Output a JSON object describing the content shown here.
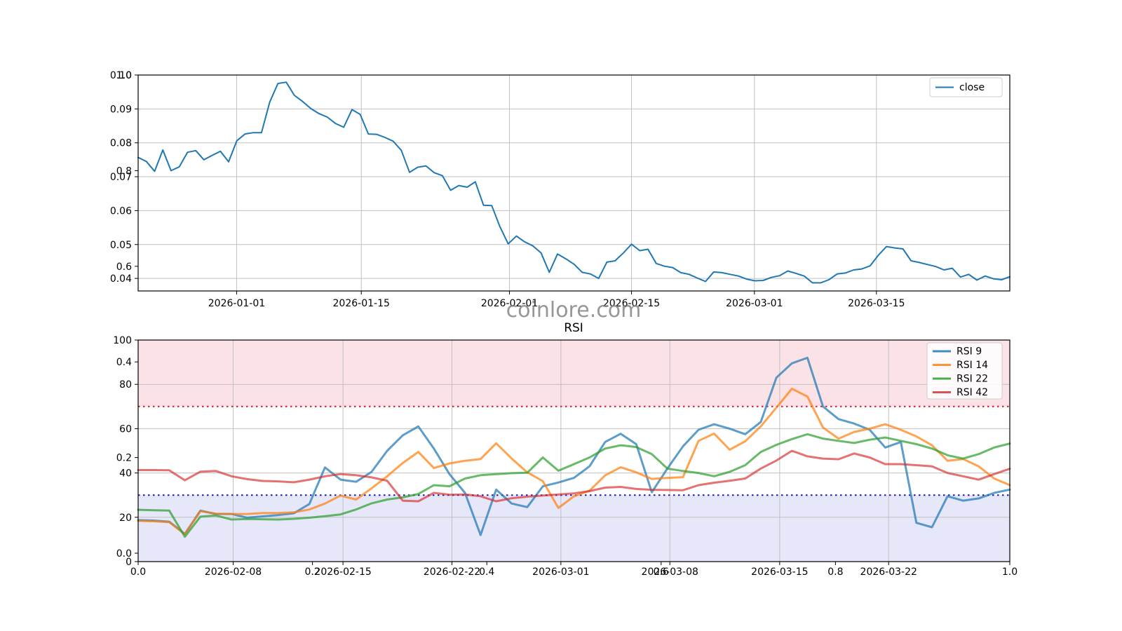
{
  "figure": {
    "watermark": "coinlore.com",
    "rsi_title": "RSI"
  },
  "overlay_axis": {
    "x_tick_labels": [
      "0.0",
      "0.2",
      "0.4",
      "0.6",
      "0.8",
      "1.0"
    ],
    "y_tick_labels": [
      "0.0",
      "0.2",
      "0.4",
      "0.6",
      "0.8",
      "1.0"
    ]
  },
  "chart_data": [
    {
      "type": "line",
      "title": "",
      "xlabel": "",
      "ylabel": "",
      "grid": true,
      "legend_position": "upper right",
      "legend_labels": [
        "close"
      ],
      "ylim": [
        0.0363,
        0.1
      ],
      "y_tick_values": [
        0.04,
        0.05,
        0.06,
        0.07,
        0.08,
        0.09,
        0.1
      ],
      "y_tick_labels": [
        "0.04",
        "0.05",
        "0.06",
        "0.07",
        "0.08",
        "0.09",
        "0.10"
      ],
      "x_tick_labels": [
        "2026-01-01",
        "2026-01-15",
        "2026-02-01",
        "2026-02-15",
        "2026-03-01",
        "2026-03-15"
      ],
      "x_tick_pos": [
        0.113,
        0.256,
        0.426,
        0.566,
        0.707,
        0.847
      ],
      "series": [
        {
          "name": "close",
          "color": "#1f77b4",
          "width": 2,
          "values": [
            0.0757,
            0.0745,
            0.0716,
            0.0779,
            0.0718,
            0.0729,
            0.0772,
            0.0777,
            0.075,
            0.0763,
            0.0775,
            0.0744,
            0.0806,
            0.0826,
            0.083,
            0.083,
            0.092,
            0.0975,
            0.0979,
            0.094,
            0.0922,
            0.0901,
            0.0886,
            0.0876,
            0.0857,
            0.0846,
            0.0898,
            0.0884,
            0.0826,
            0.0825,
            0.0816,
            0.0805,
            0.0778,
            0.0713,
            0.0728,
            0.0732,
            0.0712,
            0.0703,
            0.066,
            0.0674,
            0.0669,
            0.0685,
            0.0616,
            0.0615,
            0.0552,
            0.0502,
            0.0525,
            0.0508,
            0.0496,
            0.0475,
            0.0418,
            0.0472,
            0.0458,
            0.0442,
            0.0418,
            0.0413,
            0.04,
            0.0448,
            0.0452,
            0.0475,
            0.0501,
            0.0482,
            0.0486,
            0.0444,
            0.0436,
            0.0432,
            0.0417,
            0.0412,
            0.0401,
            0.0391,
            0.0419,
            0.0417,
            0.0412,
            0.0407,
            0.0398,
            0.0393,
            0.0394,
            0.0403,
            0.0408,
            0.0422,
            0.0415,
            0.0407,
            0.0387,
            0.0387,
            0.0396,
            0.0413,
            0.0416,
            0.0425,
            0.0428,
            0.0437,
            0.0468,
            0.0494,
            0.049,
            0.0487,
            0.0452,
            0.0447,
            0.0441,
            0.0435,
            0.0425,
            0.043,
            0.0404,
            0.0412,
            0.0395,
            0.0407,
            0.0399,
            0.0396,
            0.0405
          ]
        }
      ]
    },
    {
      "type": "line",
      "title": "RSI",
      "xlabel": "",
      "ylabel": "",
      "grid": true,
      "legend_position": "upper right",
      "legend_labels": [
        "RSI 9",
        "RSI 14",
        "RSI 22",
        "RSI 42"
      ],
      "ylim": [
        0,
        100
      ],
      "y_tick_values": [
        0,
        20,
        40,
        60,
        80,
        100
      ],
      "y_tick_labels": [
        "0",
        "20",
        "40",
        "60",
        "80",
        "100"
      ],
      "x_tick_labels": [
        "2026-02-08",
        "2026-02-15",
        "2026-02-22",
        "2026-03-01",
        "2026-03-08",
        "2026-03-15",
        "2026-03-22"
      ],
      "x_tick_pos": [
        0.109,
        0.235,
        0.36,
        0.485,
        0.61,
        0.736,
        0.861
      ],
      "bands": [
        {
          "from": 70,
          "to": 100,
          "color": "rgba(220,20,60,0.12)",
          "name": "overbought-band"
        },
        {
          "from": 0,
          "to": 30,
          "color": "rgba(21,21,208,0.10)",
          "name": "oversold-band"
        }
      ],
      "hlines": [
        {
          "y": 70,
          "color": "#dc143c",
          "style": "dotted",
          "name": "overbought-threshold"
        },
        {
          "y": 30,
          "color": "#1515d0",
          "style": "dotted",
          "name": "oversold-threshold"
        }
      ],
      "series": [
        {
          "name": "RSI 9",
          "color": "rgba(31,119,180,0.72)",
          "width": 3,
          "values": [
            18.7,
            18.5,
            18.0,
            12.5,
            23.0,
            21.5,
            21.5,
            19.8,
            20.4,
            21.0,
            21.8,
            26.0,
            42.5,
            37.0,
            36.0,
            40.5,
            50.0,
            57.0,
            61.0,
            51.0,
            39.5,
            31.0,
            12.0,
            32.5,
            26.2,
            24.6,
            34.0,
            35.7,
            37.8,
            43.0,
            54.0,
            57.7,
            53.0,
            31.3,
            42.0,
            52.0,
            59.5,
            62.0,
            60.0,
            57.5,
            63.0,
            83.0,
            89.5,
            92.0,
            70.0,
            64.3,
            62.3,
            59.5,
            51.5,
            54.0,
            17.5,
            15.5,
            29.5,
            27.5,
            28.5,
            31.0,
            32.5
          ]
        },
        {
          "name": "RSI 14",
          "color": "rgba(255,127,14,0.72)",
          "width": 3,
          "values": [
            18.4,
            18.2,
            17.8,
            12.3,
            22.8,
            21.6,
            21.5,
            21.5,
            21.9,
            21.9,
            22.2,
            23.5,
            26.2,
            29.8,
            28.0,
            33.1,
            38.5,
            44.5,
            49.5,
            42.2,
            44.3,
            45.5,
            46.3,
            53.4,
            46.5,
            40.3,
            36.3,
            24.2,
            29.5,
            32.0,
            38.9,
            42.6,
            40.3,
            37.3,
            37.8,
            38.1,
            54.5,
            57.8,
            50.5,
            54.3,
            61.0,
            69.5,
            78.0,
            74.5,
            60.5,
            55.5,
            58.5,
            60.0,
            62.0,
            59.5,
            56.5,
            52.5,
            45.5,
            46.3,
            43.0,
            37.5,
            34.5
          ]
        },
        {
          "name": "RSI 22",
          "color": "rgba(44,160,44,0.72)",
          "width": 3,
          "values": [
            23.4,
            23.2,
            23.0,
            11.2,
            20.3,
            20.8,
            19.0,
            19.2,
            19.1,
            19.0,
            19.3,
            19.8,
            20.5,
            21.3,
            23.5,
            26.3,
            28.0,
            29.0,
            30.5,
            34.5,
            34.0,
            37.5,
            39.0,
            39.5,
            39.9,
            40.1,
            47.0,
            41.0,
            44.0,
            47.0,
            51.0,
            52.5,
            51.7,
            48.5,
            42.0,
            40.9,
            40.0,
            38.5,
            40.5,
            43.5,
            49.5,
            52.7,
            55.3,
            57.5,
            55.5,
            54.5,
            53.5,
            55.0,
            56.0,
            54.5,
            53.0,
            51.0,
            48.0,
            46.5,
            48.5,
            51.5,
            53.3
          ]
        },
        {
          "name": "RSI 42",
          "color": "rgba(214,39,40,0.65)",
          "width": 3,
          "values": [
            41.3,
            41.3,
            41.2,
            36.7,
            40.6,
            40.9,
            38.5,
            37.2,
            36.4,
            36.2,
            35.8,
            37.0,
            38.5,
            39.5,
            39.0,
            38.0,
            36.5,
            27.5,
            27.2,
            31.0,
            30.2,
            30.3,
            29.5,
            27.2,
            28.6,
            29.3,
            29.8,
            30.3,
            30.8,
            31.8,
            33.4,
            33.7,
            32.8,
            32.4,
            32.3,
            32.2,
            34.5,
            35.6,
            36.5,
            37.5,
            42.0,
            45.6,
            50.0,
            47.5,
            46.5,
            46.2,
            48.8,
            47.0,
            44.0,
            44.0,
            43.5,
            43.0,
            40.0,
            38.5,
            37.0,
            39.5,
            41.9
          ]
        }
      ]
    }
  ]
}
